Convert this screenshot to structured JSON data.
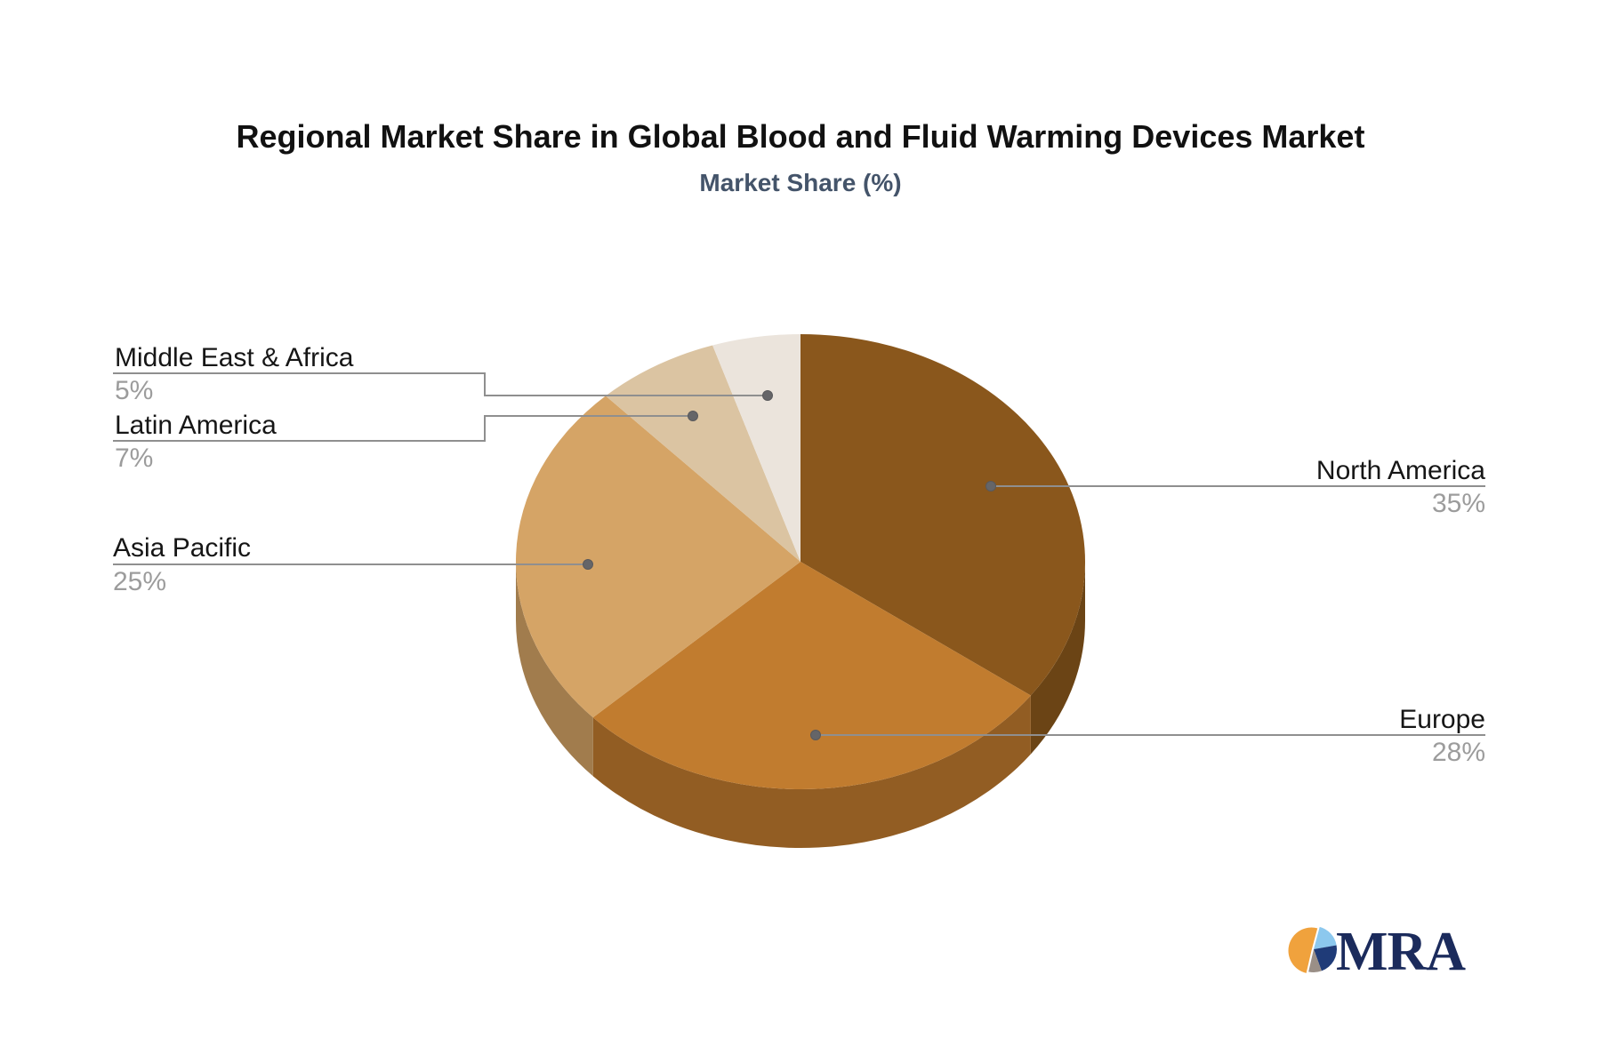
{
  "title": "Regional Market Share in Global Blood and Fluid Warming Devices Market",
  "subtitle": "Market Share (%)",
  "chart_data": {
    "type": "pie",
    "style": "3d",
    "title": "Regional Market Share in Global Blood and Fluid Warming Devices Market",
    "subtitle": "Market Share (%)",
    "unit": "%",
    "start_angle_deg": 0,
    "direction": "clockwise",
    "legend_position": "none",
    "labels": "outside-with-leader-lines",
    "slices": [
      {
        "name": "North America",
        "value": 35,
        "pct_label": "35%",
        "color": "#8A571C",
        "side_color": "#6B4415"
      },
      {
        "name": "Europe",
        "value": 28,
        "pct_label": "28%",
        "color": "#C17C2F",
        "side_color": "#925D23"
      },
      {
        "name": "Asia Pacific",
        "value": 25,
        "pct_label": "25%",
        "color": "#D5A466",
        "side_color": "#A17C4D"
      },
      {
        "name": "Latin America",
        "value": 7,
        "pct_label": "7%",
        "color": "#DBC4A2"
      },
      {
        "name": "Middle East & Africa",
        "value": 5,
        "pct_label": "5%",
        "color": "#EBE4DC"
      }
    ]
  },
  "logo": {
    "text": "MRA",
    "text_color": "#1B2B5C",
    "pie_orange": "#F0A23D",
    "pie_lightblue": "#8CC8EE",
    "pie_navy": "#1F3B78",
    "pie_gray": "#9A8F87"
  },
  "colors": {
    "background": "#FFFFFF",
    "title": "#111111",
    "subtitle": "#44546A",
    "label": "#161616",
    "pct": "#9C9C9C",
    "leader_line": "#8F8F8F",
    "leader_dot": "#656568"
  }
}
